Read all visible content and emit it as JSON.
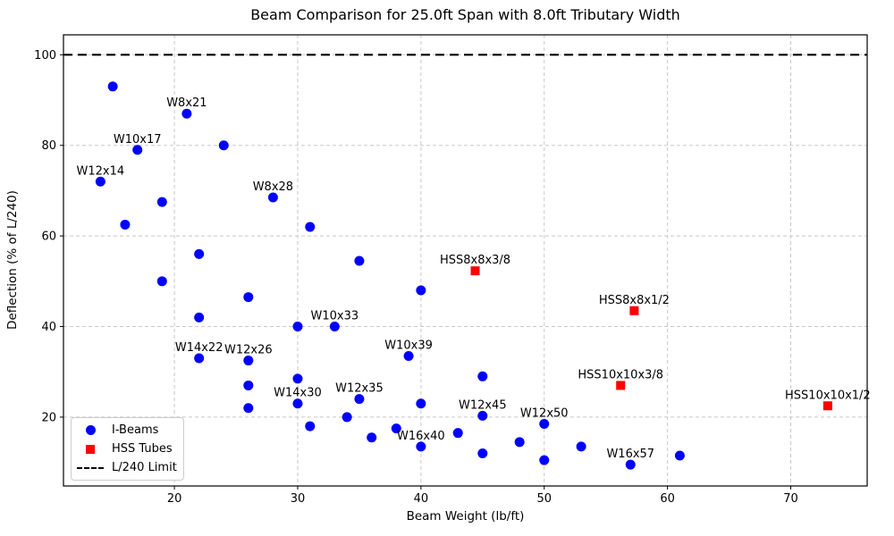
{
  "chart_data": {
    "type": "scatter",
    "title": "Beam Comparison for 25.0ft Span with 8.0ft Tributary Width",
    "xlabel": "Beam Weight (lb/ft)",
    "ylabel": "Deflection (% of L/240)",
    "xlim": [
      11.0,
      76.2
    ],
    "ylim": [
      4.8,
      104.4
    ],
    "x_ticks": [
      20,
      30,
      40,
      50,
      60,
      70
    ],
    "y_ticks": [
      20,
      40,
      60,
      80,
      100
    ],
    "grid": true,
    "grid_style": "dashed",
    "grid_color": "#c8c8c8",
    "legend_position": "lower left",
    "series": [
      {
        "name": "I-Beams",
        "marker": "circle",
        "color": "#0000ff",
        "points": [
          [
            15,
            93,
            ""
          ],
          [
            21,
            87,
            "W8x21"
          ],
          [
            24,
            80,
            ""
          ],
          [
            17,
            79,
            "W10x17"
          ],
          [
            14,
            72,
            "W12x14"
          ],
          [
            28,
            68.5,
            "W8x28"
          ],
          [
            19,
            67.5,
            ""
          ],
          [
            16,
            62.5,
            ""
          ],
          [
            31,
            62,
            ""
          ],
          [
            22,
            56,
            ""
          ],
          [
            35,
            54.5,
            ""
          ],
          [
            19,
            50,
            ""
          ],
          [
            40,
            48,
            ""
          ],
          [
            26,
            46.5,
            ""
          ],
          [
            22,
            42,
            ""
          ],
          [
            30,
            40,
            ""
          ],
          [
            33,
            40,
            "W10x33"
          ],
          [
            39,
            33.5,
            "W10x39"
          ],
          [
            22,
            33,
            "W14x22"
          ],
          [
            26,
            32.5,
            "W12x26"
          ],
          [
            45,
            29,
            ""
          ],
          [
            30,
            28.5,
            ""
          ],
          [
            26,
            27,
            ""
          ],
          [
            35,
            24,
            "W12x35"
          ],
          [
            30,
            23,
            "W14x30"
          ],
          [
            40,
            23,
            ""
          ],
          [
            26,
            22,
            ""
          ],
          [
            45,
            20.3,
            "W12x45"
          ],
          [
            34,
            20,
            ""
          ],
          [
            50,
            18.5,
            "W12x50"
          ],
          [
            31,
            18,
            ""
          ],
          [
            38,
            17.5,
            ""
          ],
          [
            43,
            16.5,
            ""
          ],
          [
            36,
            15.5,
            ""
          ],
          [
            48,
            14.5,
            ""
          ],
          [
            53,
            13.5,
            ""
          ],
          [
            40,
            13.5,
            "W16x40"
          ],
          [
            45,
            12,
            ""
          ],
          [
            61,
            11.5,
            ""
          ],
          [
            50,
            10.5,
            ""
          ],
          [
            57,
            9.5,
            "W16x57"
          ]
        ]
      },
      {
        "name": "HSS Tubes",
        "marker": "square",
        "color": "#ff0000",
        "points": [
          [
            44.4,
            52.3,
            "HSS8x8x3/8"
          ],
          [
            57.3,
            43.5,
            "HSS8x8x1/2"
          ],
          [
            56.2,
            27,
            "HSS10x10x3/8"
          ],
          [
            73,
            22.5,
            "HSS10x10x1/2"
          ]
        ]
      }
    ],
    "limit_line": {
      "label": "L/240 Limit",
      "y": 100,
      "color": "#000000",
      "style": "dashed"
    }
  }
}
